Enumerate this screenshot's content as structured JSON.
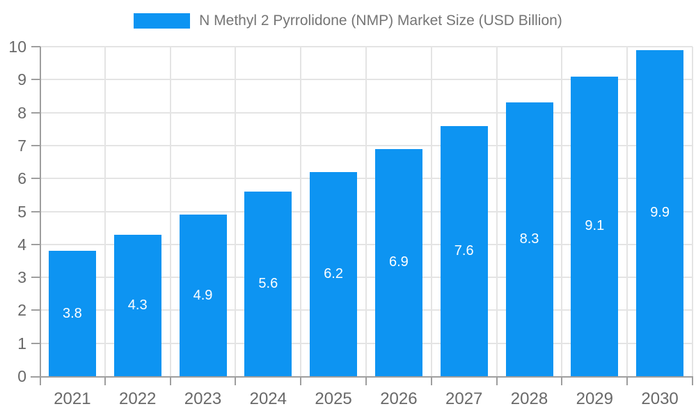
{
  "chart_data": {
    "type": "bar",
    "title": "N Methyl 2 Pyrrolidone (NMP) Market Size (USD Billion)",
    "legend": {
      "position": "top",
      "entries": [
        "N Methyl 2 Pyrrolidone (NMP) Market Size (USD Billion)"
      ]
    },
    "categories": [
      "2021",
      "2022",
      "2023",
      "2024",
      "2025",
      "2026",
      "2027",
      "2028",
      "2029",
      "2030"
    ],
    "values": [
      3.8,
      4.3,
      4.9,
      5.6,
      6.2,
      6.9,
      7.6,
      8.3,
      9.1,
      9.9
    ],
    "bar_labels": [
      "3.8",
      "4.3",
      "4.9",
      "5.6",
      "6.2",
      "6.9",
      "7.6",
      "8.3",
      "9.1",
      "9.9"
    ],
    "xlabel": "",
    "ylabel": "",
    "ylim": [
      0,
      10
    ],
    "ytick_step": 1,
    "ytick_labels": [
      "0",
      "1",
      "2",
      "3",
      "4",
      "5",
      "6",
      "7",
      "8",
      "9",
      "10"
    ],
    "grid": true,
    "colors": {
      "bar": "#0d94f2",
      "bar_label": "#ffffff",
      "grid": "#e4e4e4",
      "axis": "#9e9e9e",
      "tick_label": "#696969",
      "title": "#757575",
      "background": "#ffffff"
    }
  }
}
